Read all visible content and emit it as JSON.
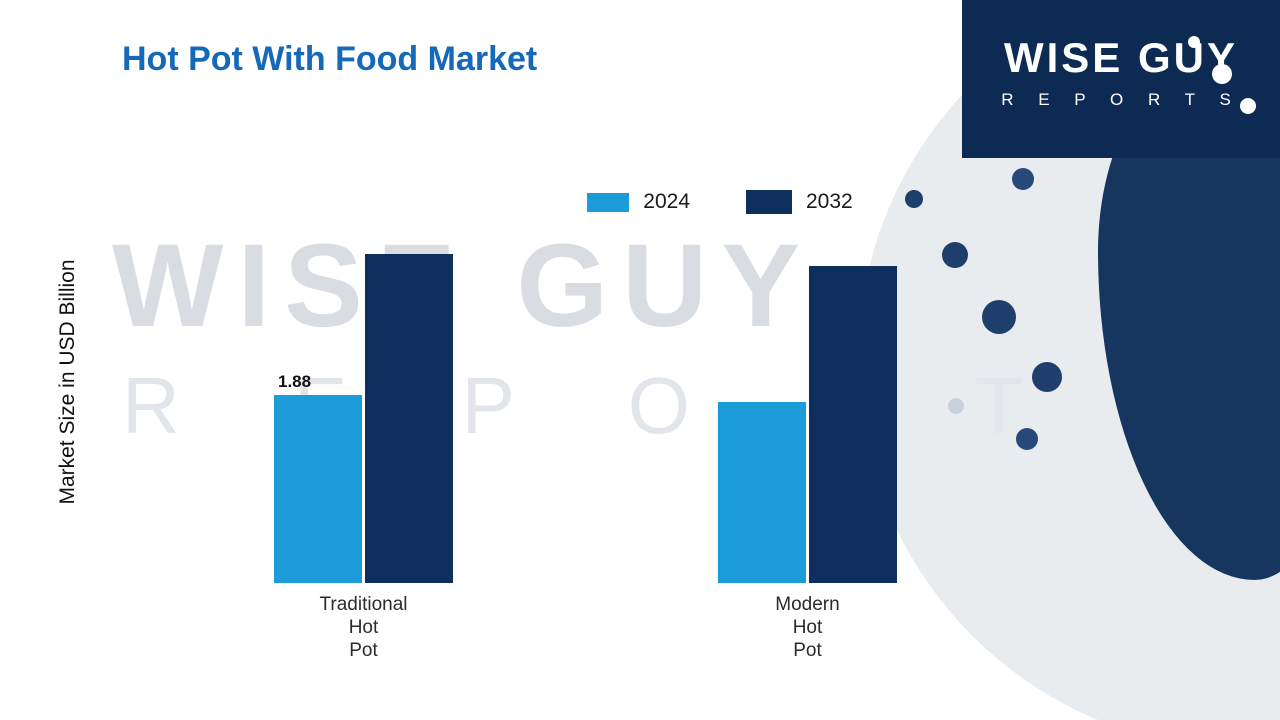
{
  "title": "Hot Pot With Food Market",
  "logo": {
    "line1": "WISE GUY",
    "line2": "R E P O R T S"
  },
  "watermark": {
    "line1": "WISE GUY",
    "line2": "R E P O R T"
  },
  "colors": {
    "accent_blue": "#1b9cd8",
    "navy": "#0e2f5e",
    "title_blue": "#1668b8",
    "logo_background": "#0d2b52"
  },
  "chart_data": {
    "type": "bar",
    "title": "Hot Pot With Food Market",
    "ylabel": "Market Size in USD Billion",
    "xlabel": "",
    "categories": [
      "Traditional\nHot\nPot",
      "Modern\nHot\nPot"
    ],
    "series": [
      {
        "name": "2024",
        "color": "#1b9cd8",
        "values": [
          1.88,
          1.81
        ]
      },
      {
        "name": "2032",
        "color": "#0e2f5e",
        "values": [
          3.29,
          3.17
        ]
      }
    ],
    "bar_labels": [
      [
        "1.88",
        ""
      ],
      [
        "",
        ""
      ]
    ],
    "ylim": [
      0,
      3.4
    ],
    "grid": false,
    "legend_position": "top"
  }
}
